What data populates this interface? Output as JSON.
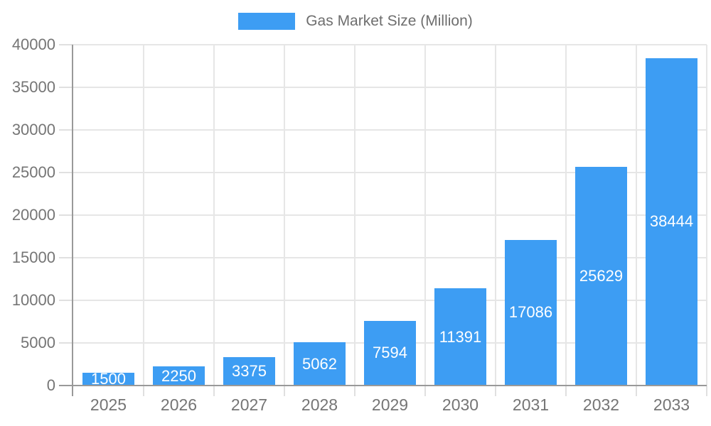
{
  "legend": {
    "label": "Gas Market Size (Million)"
  },
  "colors": {
    "bar": "#3d9df3",
    "value_label": "#ffffff",
    "axis_text": "#757575",
    "legend_text": "#6e6e6e",
    "gridline": "#e6e6e6",
    "tick": "#e0e0e0",
    "axis_line": "#999999",
    "background": "#ffffff"
  },
  "chart_data": {
    "type": "bar",
    "title": "Gas Market Size (Million)",
    "series_name": "Gas Market Size (Million)",
    "categories": [
      "2025",
      "2026",
      "2027",
      "2028",
      "2029",
      "2030",
      "2031",
      "2032",
      "2033"
    ],
    "values": [
      1500,
      2250,
      3375,
      5062,
      7594,
      11391,
      17086,
      25629,
      38444
    ],
    "value_labels": [
      "1500",
      "2250",
      "3375",
      "5062",
      "7594",
      "11391",
      "17086",
      "25629",
      "38444"
    ],
    "xlabel": "",
    "ylabel": "",
    "ylim": [
      0,
      40000
    ],
    "ytick_step": 5000,
    "yticks": [
      0,
      5000,
      10000,
      15000,
      20000,
      25000,
      30000,
      35000,
      40000
    ],
    "grid": true,
    "legend_position": "top-center",
    "value_label_position": "inside-center"
  }
}
